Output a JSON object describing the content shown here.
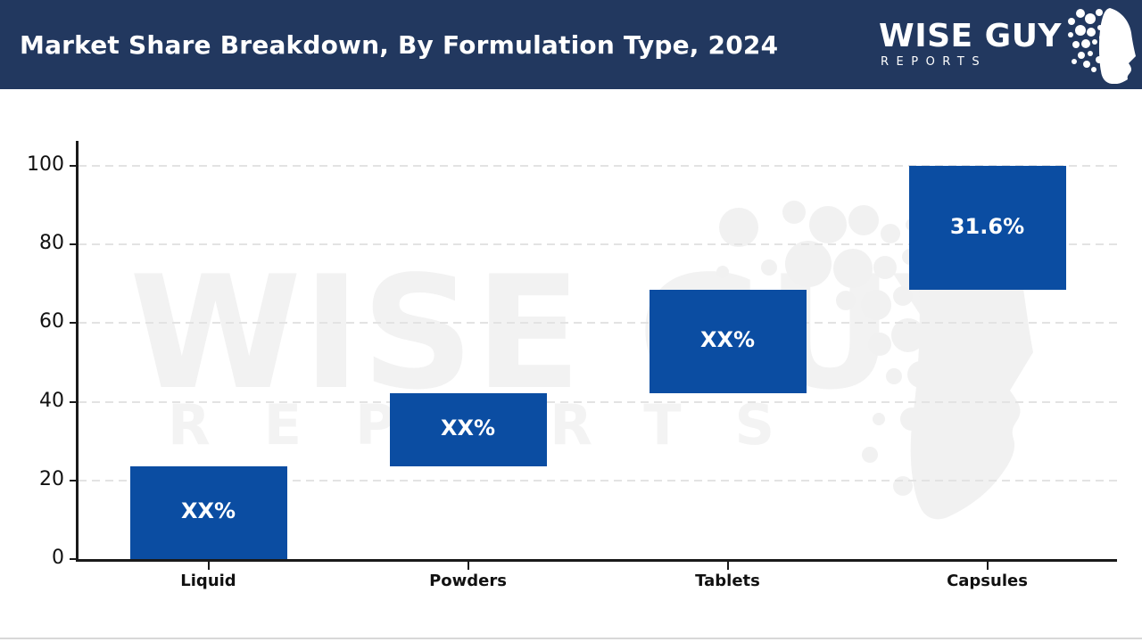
{
  "header": {
    "title": "Market Share Breakdown, By Formulation Type, 2024",
    "logo": {
      "line1": "WISE GUY",
      "line2": "REPORTS"
    }
  },
  "watermark": {
    "line1": "WISE GUY",
    "line2": "REPORTS"
  },
  "chart_data": {
    "type": "bar",
    "subtype": "waterfall",
    "title": "Market Share Breakdown, By Formulation Type, 2024",
    "xlabel": "",
    "ylabel": "",
    "categories": [
      "Liquid",
      "Powders",
      "Tablets",
      "Capsules"
    ],
    "segments": [
      {
        "category": "Liquid",
        "start": 0,
        "end": 23.6,
        "label": "XX%"
      },
      {
        "category": "Powders",
        "start": 23.6,
        "end": 42.2,
        "label": "XX%"
      },
      {
        "category": "Tablets",
        "start": 42.2,
        "end": 68.4,
        "label": "XX%"
      },
      {
        "category": "Capsules",
        "start": 68.4,
        "end": 100,
        "label": "31.6%"
      }
    ],
    "yticks": [
      0,
      20,
      40,
      60,
      80,
      100
    ],
    "ylim": [
      0,
      107
    ],
    "grid": "horizontal-dashed",
    "legend": "none",
    "colors": {
      "bar": "#0b4da2",
      "bar_label": "#ffffff",
      "header_bg": "#22385f",
      "grid": "#e3e3e3",
      "axis": "#1a1a1a",
      "watermark": "#f2f2f2",
      "bottom_line": "#d8d8d8"
    }
  }
}
